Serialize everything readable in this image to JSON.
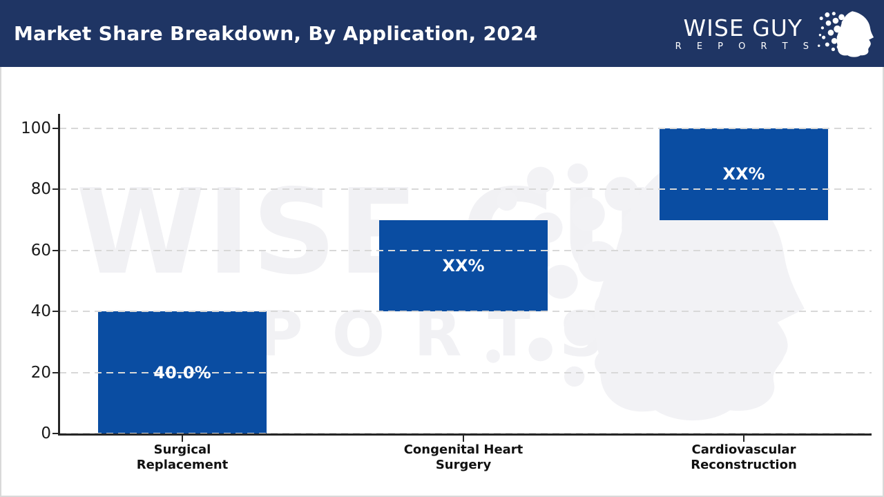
{
  "header": {
    "title": "Market Share Breakdown, By Application, 2024",
    "background_color": "#1f3564",
    "logo": {
      "line1": "WISE GUY",
      "line2": "R E P O R T S"
    }
  },
  "watermark": {
    "line1": "WISE GUY",
    "line2": "REPORTS"
  },
  "chart_data": {
    "type": "bar",
    "subtype": "waterfall",
    "title": "Market Share Breakdown, By Application, 2024",
    "xlabel": "",
    "ylabel": "",
    "ylim": [
      0,
      100
    ],
    "yticks": [
      0,
      20,
      40,
      60,
      80,
      100
    ],
    "grid": "horizontal-dashed",
    "legend": "none",
    "bar_color": "#0a4da2",
    "value_label_color": "#ffffff",
    "categories": [
      "Surgical\nReplacement",
      "Congenital Heart\nSurgery",
      "Cardiovascular\nReconstruction"
    ],
    "bars": [
      {
        "category": "Surgical Replacement",
        "start": 0,
        "end": 40,
        "label": "40.0%"
      },
      {
        "category": "Congenital Heart Surgery",
        "start": 40,
        "end": 70,
        "label": "XX%"
      },
      {
        "category": "Cardiovascular Reconstruction",
        "start": 70,
        "end": 100,
        "label": "XX%"
      }
    ]
  }
}
